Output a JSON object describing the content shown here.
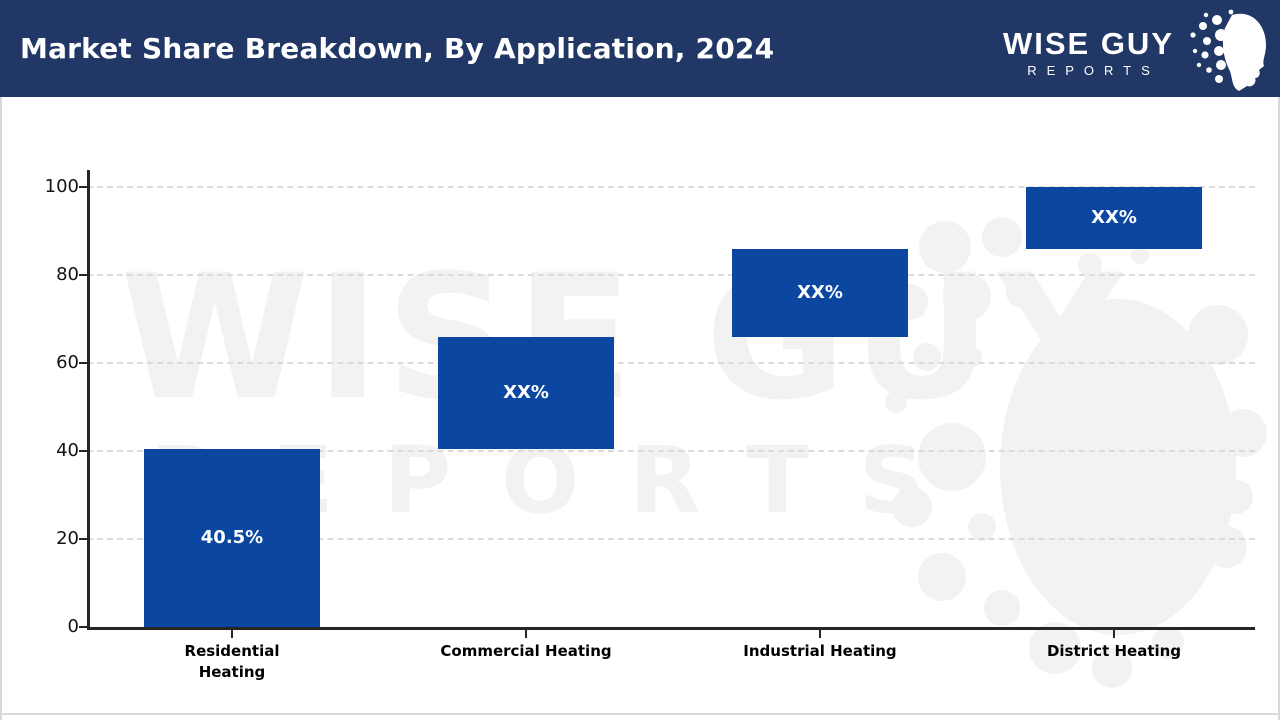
{
  "header": {
    "title": "Market Share Breakdown, By Application, 2024",
    "logo": {
      "line1": "WISE GUY",
      "line2": "REPORTS"
    }
  },
  "watermark": {
    "line1": "WISE GUY",
    "line2": "REPORTS"
  },
  "colors": {
    "header_bg": "#213765",
    "bar": "#0b47a1",
    "axis": "#262626",
    "grid": "#dbdbdb",
    "watermark": "#f2f2f2",
    "bar_label": "#ffffff",
    "border": "#d8d8d8"
  },
  "chart_data": {
    "type": "bar",
    "subtype": "waterfall",
    "title": "Market Share Breakdown, By Application, 2024",
    "xlabel": "",
    "ylabel": "",
    "categories": [
      "Residential\nHeating",
      "Commercial Heating",
      "Industrial Heating",
      "District Heating"
    ],
    "segments": [
      {
        "category": "Residential Heating",
        "start": 0,
        "end": 40.5,
        "label": "40.5%"
      },
      {
        "category": "Commercial Heating",
        "start": 40.5,
        "end": 66,
        "label": "XX%"
      },
      {
        "category": "Industrial Heating",
        "start": 66,
        "end": 86,
        "label": "XX%"
      },
      {
        "category": "District Heating",
        "start": 86,
        "end": 100,
        "label": "XX%"
      }
    ],
    "yticks": [
      0,
      20,
      40,
      60,
      80,
      100
    ],
    "ylim": [
      0,
      104
    ],
    "grid": "horizontal-dashed",
    "legend": "none",
    "bar_color": "#0b47a1"
  }
}
